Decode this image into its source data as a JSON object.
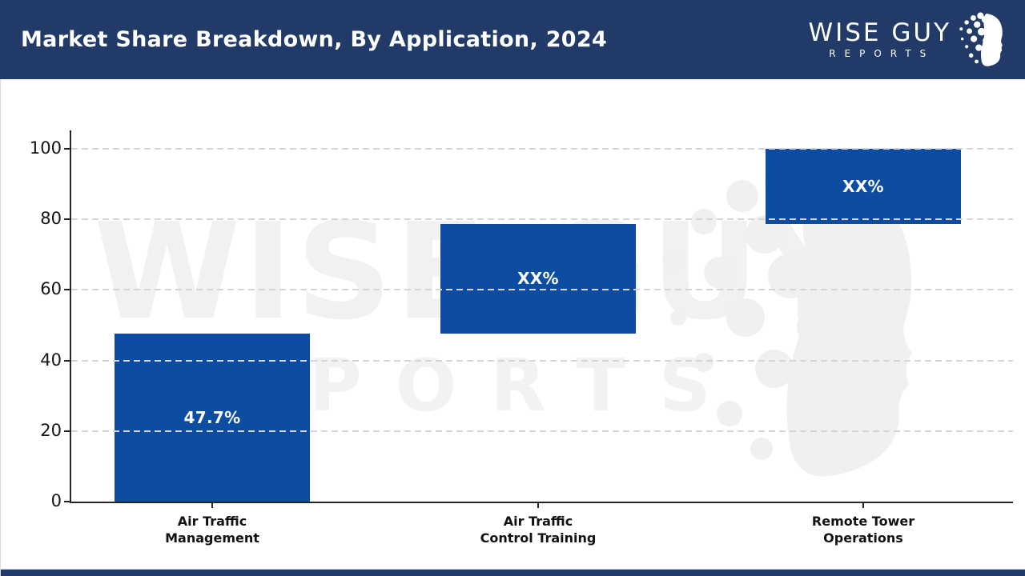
{
  "header": {
    "title": "Market Share Breakdown, By Application, 2024",
    "logo": {
      "line1": "WISE GUY",
      "line2": "REPORTS"
    },
    "bg_color": "#213a67"
  },
  "watermark": {
    "line1": "WISE GUY",
    "line2": "REPORTS"
  },
  "chart_data": {
    "type": "bar",
    "variant": "stacked-waterfall",
    "title": "Market Share Breakdown, By Application, 2024",
    "categories": [
      [
        "Air Traffic",
        "Management"
      ],
      [
        "Air Traffic",
        "Control Training"
      ],
      [
        "Remote Tower",
        "Operations"
      ]
    ],
    "segments": [
      {
        "start": 0,
        "end": 47.7,
        "label": "47.7%"
      },
      {
        "start": 47.7,
        "end": 78.7,
        "label": "XX%"
      },
      {
        "start": 78.7,
        "end": 100,
        "label": "XX%"
      }
    ],
    "ylim": [
      0,
      100
    ],
    "yticks": [
      0,
      20,
      40,
      60,
      80,
      100
    ],
    "xlabel": "",
    "ylabel": "",
    "grid": true,
    "grid_on_top": true,
    "legend": false,
    "bar_color": "#0c4da2",
    "bar_label_color": "#ffffff",
    "gridline_color": "#d5d5d5",
    "axis_color": "#262626"
  },
  "footer": {
    "bar_color": "#213a67"
  }
}
